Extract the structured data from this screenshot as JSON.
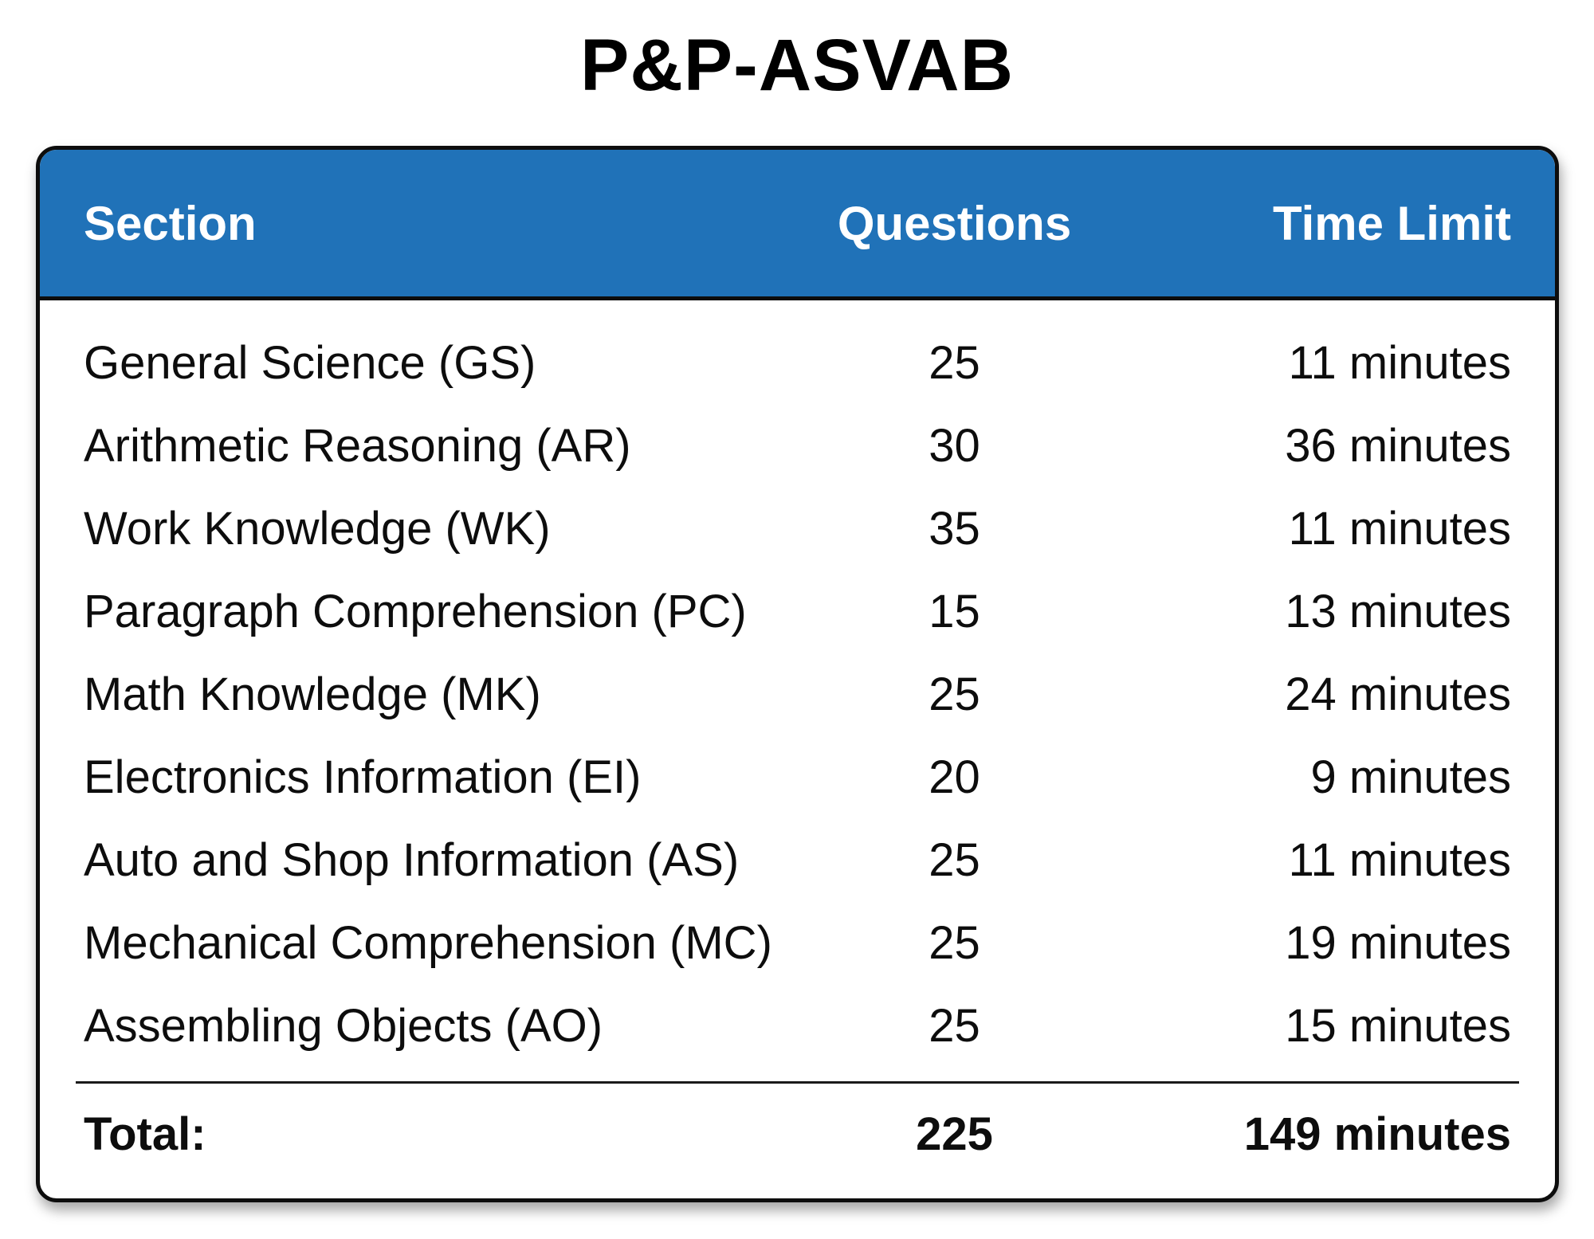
{
  "title": "P&P-ASVAB",
  "colors": {
    "header_bg": "#2072B8",
    "header_text": "#FFFFFF",
    "card_border": "#0D0D0D",
    "body_text": "#0D0D0D"
  },
  "table": {
    "headers": {
      "section": "Section",
      "questions": "Questions",
      "time_limit": "Time Limit"
    },
    "rows": [
      {
        "section": "General Science (GS)",
        "questions": "25",
        "time": "11 minutes"
      },
      {
        "section": "Arithmetic Reasoning (AR)",
        "questions": "30",
        "time": "36 minutes"
      },
      {
        "section": "Work Knowledge (WK)",
        "questions": "35",
        "time": "11 minutes"
      },
      {
        "section": "Paragraph Comprehension (PC)",
        "questions": "15",
        "time": "13 minutes"
      },
      {
        "section": "Math Knowledge (MK)",
        "questions": "25",
        "time": "24 minutes"
      },
      {
        "section": "Electronics Information (EI)",
        "questions": "20",
        "time": "9 minutes"
      },
      {
        "section": "Auto and Shop Information (AS)",
        "questions": "25",
        "time": "11 minutes"
      },
      {
        "section": "Mechanical Comprehension (MC)",
        "questions": "25",
        "time": "19 minutes"
      },
      {
        "section": "Assembling Objects (AO)",
        "questions": "25",
        "time": "15 minutes"
      }
    ],
    "total": {
      "label": "Total:",
      "questions": "225",
      "time": "149 minutes"
    }
  }
}
